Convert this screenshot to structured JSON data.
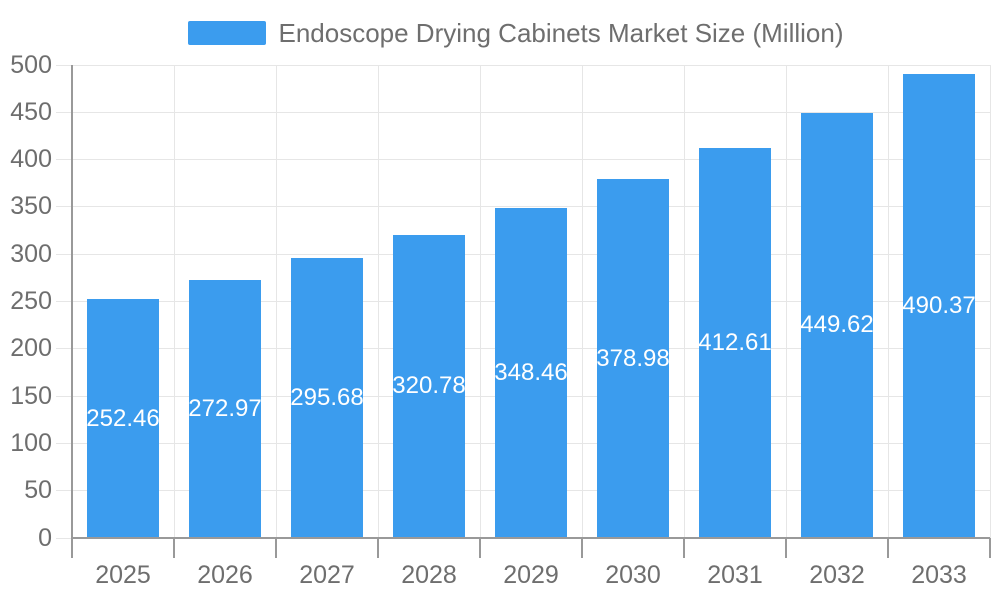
{
  "chart_data": {
    "type": "bar",
    "title": "Endoscope Drying Cabinets Market Size (Million)",
    "legend_position": "top-center",
    "legend": [
      "Endoscope Drying Cabinets Market Size (Million)"
    ],
    "categories": [
      "2025",
      "2026",
      "2027",
      "2028",
      "2029",
      "2030",
      "2031",
      "2032",
      "2033"
    ],
    "series": [
      {
        "name": "Endoscope Drying Cabinets Market Size (Million)",
        "values": [
          252.46,
          272.97,
          295.68,
          320.78,
          348.46,
          378.98,
          412.61,
          449.62,
          490.37
        ]
      }
    ],
    "value_labels": [
      "252.46",
      "272.97",
      "295.68",
      "320.78",
      "348.46",
      "378.98",
      "412.61",
      "449.62",
      "490.37"
    ],
    "xlabel": "",
    "ylabel": "",
    "ylim": [
      0,
      500
    ],
    "ytick_step": 50,
    "yticks": [
      "0",
      "50",
      "100",
      "150",
      "200",
      "250",
      "300",
      "350",
      "400",
      "450",
      "500"
    ],
    "grid": true,
    "colors": {
      "bar": "#3b9cee",
      "value_label": "#ffffff",
      "axis_line": "#999999",
      "gridline": "#e6e6e6",
      "text": "#6e6e6e",
      "background": "#ffffff"
    }
  }
}
